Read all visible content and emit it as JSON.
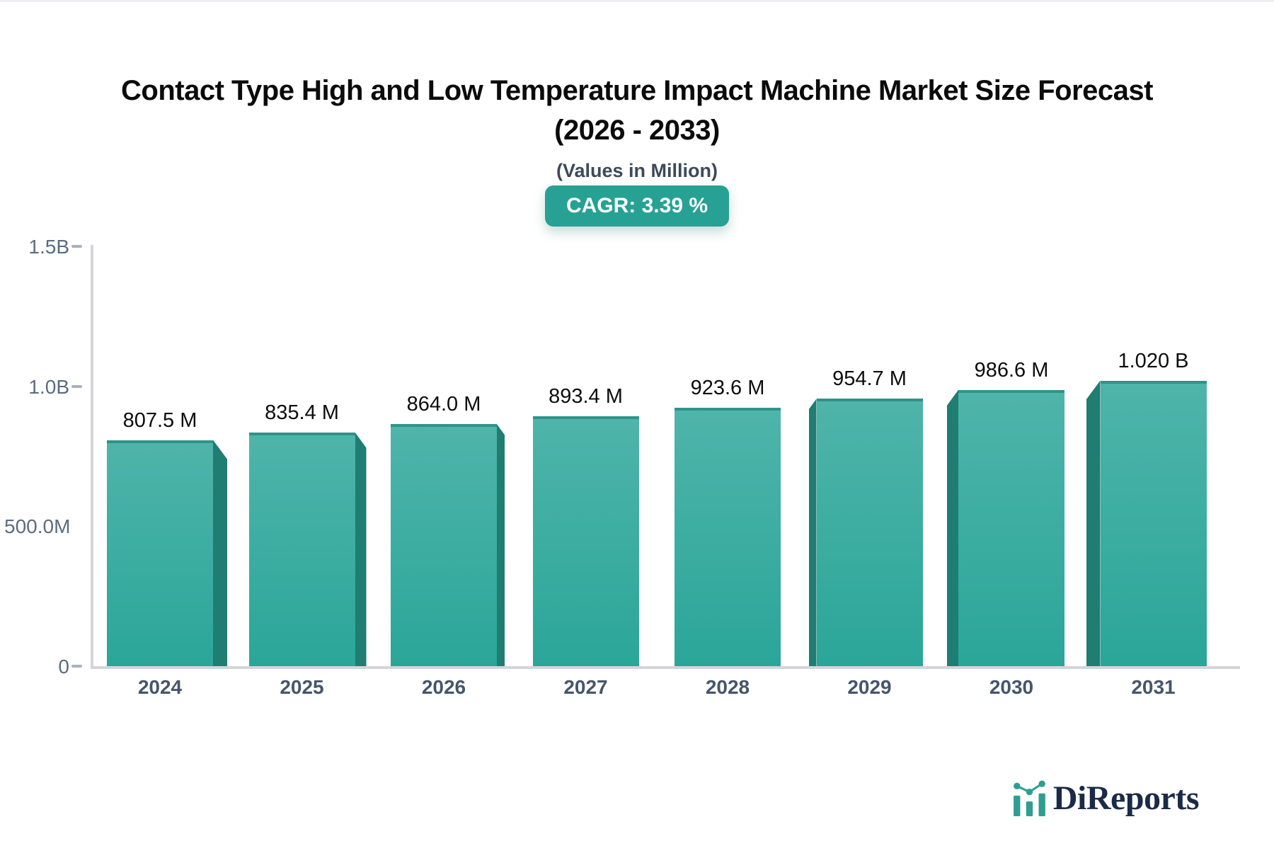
{
  "header": {
    "title_line1": "Contact Type High and Low Temperature Impact Machine Market Size Forecast",
    "title_line2": "(2026 - 2033)",
    "subtitle": "(Values in Million)",
    "cagr_badge": "CAGR: 3.39 %"
  },
  "chart_data": {
    "type": "bar",
    "title": "Contact Type High and Low Temperature Impact Machine Market Size Forecast (2026 - 2033)",
    "subtitle": "(Values in Million)",
    "cagr_percent": 3.39,
    "values_in": "Million",
    "categories": [
      "2024",
      "2025",
      "2026",
      "2027",
      "2028",
      "2029",
      "2030",
      "2031"
    ],
    "values": [
      807.5,
      835.4,
      864.0,
      893.4,
      923.6,
      954.7,
      986.6,
      1020.0
    ],
    "value_labels": [
      "807.5 M",
      "835.4 M",
      "864.0 M",
      "893.4 M",
      "923.6 M",
      "954.7 M",
      "986.6 M",
      "1.020 B"
    ],
    "xlabel": "",
    "ylabel": "",
    "ylim": [
      0,
      1500
    ],
    "yticks": [
      {
        "value": 1500,
        "label": "1.5B",
        "dash": true
      },
      {
        "value": 1000,
        "label": "1.0B",
        "dash": true
      },
      {
        "value": 500,
        "label": "500.0M",
        "dash": false
      },
      {
        "value": 0,
        "label": "0",
        "dash": true
      }
    ],
    "grid": false,
    "legend": false,
    "bar_style": {
      "face_top": "#4fb4aa",
      "face_bottom": "#2aa698",
      "top_edge": "#2e9488",
      "side_panel": "#1f7d71"
    }
  },
  "branding": {
    "logo_text": "DiReports",
    "logo_icon": "mini-bar-chart-icon",
    "logo_text_color": "#1b2b47",
    "logo_icon_color": "#2f9e92"
  },
  "colors": {
    "accent_teal": "#27a194",
    "axis_line": "#d4d5db",
    "tick_label": "#5c6c7e",
    "x_label": "#46566a",
    "title": "#0b0b0b",
    "subtitle": "#3d4a5b",
    "badge_text": "#ffffff"
  }
}
